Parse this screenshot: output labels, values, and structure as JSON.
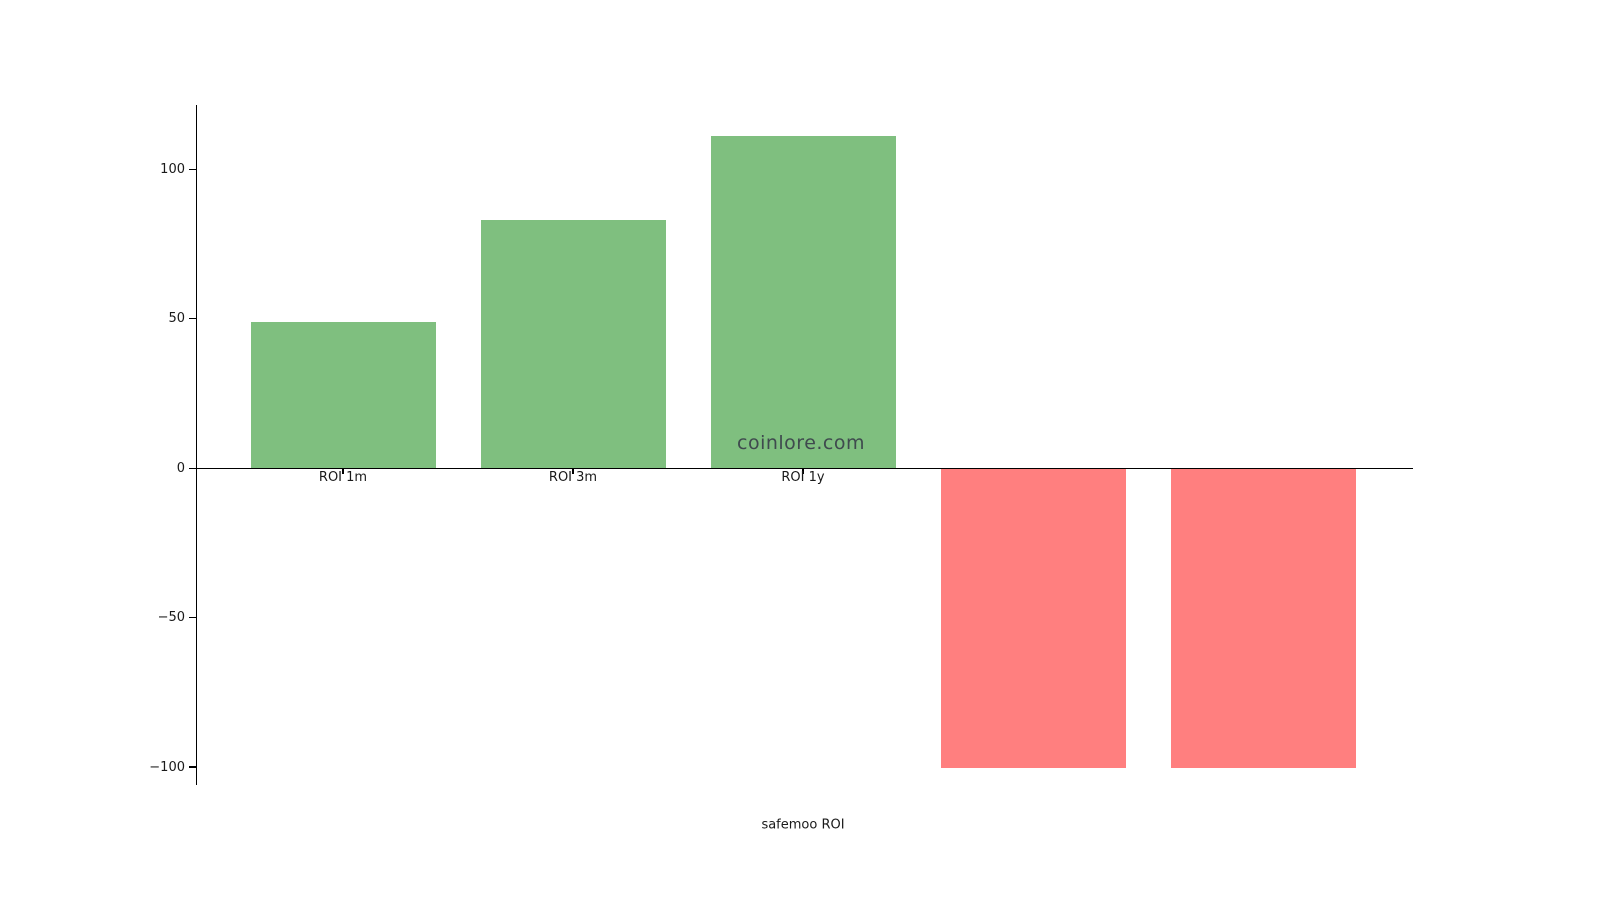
{
  "page": {
    "background": "#ffffff"
  },
  "chart_data": {
    "type": "bar",
    "title": "",
    "xlabel": "safemoo ROI",
    "ylabel": "",
    "watermark": "coinlore.com",
    "categories": [
      "ROI 1m",
      "ROI 3m",
      "ROI 1y",
      "",
      ""
    ],
    "values": [
      49,
      83,
      111,
      -100,
      -100
    ],
    "colors": {
      "positive": "#7fbf7f",
      "negative": "#ff7f7f",
      "axis": "#000000",
      "text": "#1a1a1a",
      "watermark": "#3f4a4e"
    },
    "yticks": [
      100,
      50,
      0,
      -50,
      -100
    ],
    "ytick_labels": [
      "100",
      "50",
      "0",
      "−50",
      "−100"
    ],
    "ylim": [
      -106,
      121.5
    ],
    "grid": false,
    "legend": null
  }
}
